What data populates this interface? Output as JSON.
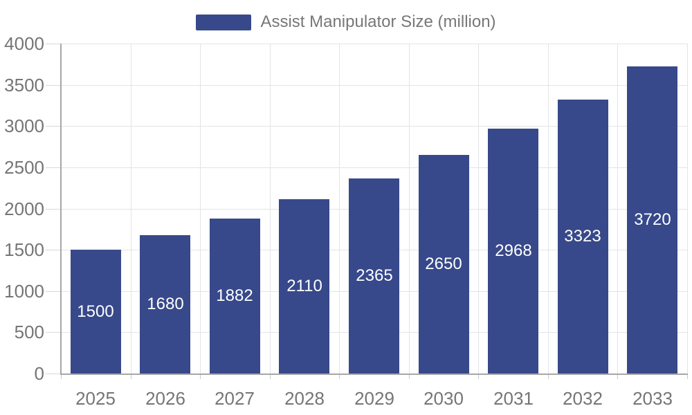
{
  "legend": {
    "label": "Assist Manipulator Size (million)"
  },
  "chart_data": {
    "type": "bar",
    "categories": [
      "2025",
      "2026",
      "2027",
      "2028",
      "2029",
      "2030",
      "2031",
      "2032",
      "2033"
    ],
    "values": [
      1500,
      1680,
      1882,
      2110,
      2365,
      2650,
      2968,
      3323,
      3720
    ],
    "title": "Assist Manipulator Size (million)",
    "xlabel": "",
    "ylabel": "",
    "ylim": [
      0,
      4000
    ],
    "yticks": [
      0,
      500,
      1000,
      1500,
      2000,
      2500,
      3000,
      3500,
      4000
    ],
    "grid": true,
    "legend_position": "top-center",
    "bar_label_position": "inside-center"
  },
  "colors": {
    "bar": "#37498A",
    "bar_label": "#FFFFFF",
    "axis_label": "#757575",
    "legend_text": "#777777",
    "axis_line": "#A6A6A6",
    "gridline": "#E4E4E9",
    "tick": "#D8D8DD",
    "background": "#FFFFFF"
  }
}
